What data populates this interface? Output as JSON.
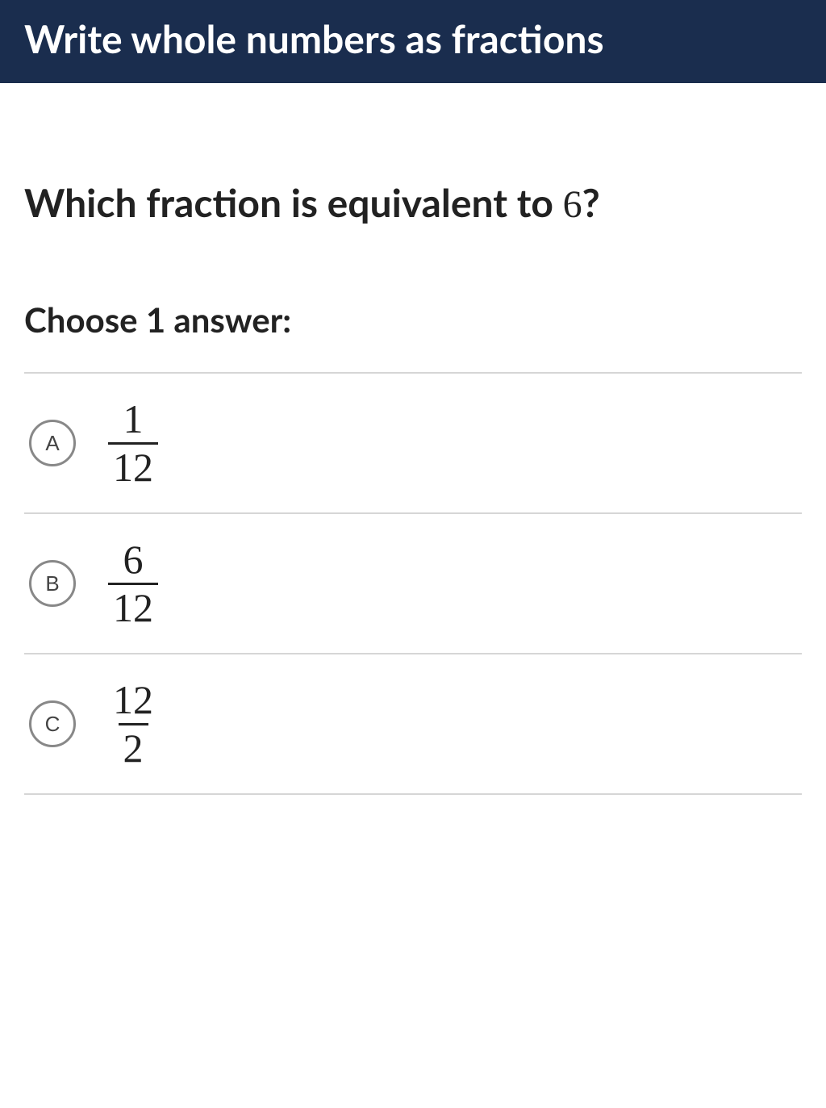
{
  "header": {
    "title": "Write whole numbers as fractions",
    "background_color": "#1a2d4e",
    "text_color": "#ffffff"
  },
  "question": {
    "prefix": "Which fraction is equivalent to ",
    "value": "6",
    "suffix": "?"
  },
  "instruction": "Choose 1 answer:",
  "options": [
    {
      "letter": "A",
      "numerator": "1",
      "denominator": "12"
    },
    {
      "letter": "B",
      "numerator": "6",
      "denominator": "12"
    },
    {
      "letter": "C",
      "numerator": "12",
      "denominator": "2"
    }
  ],
  "styling": {
    "body_text_color": "#222222",
    "divider_color": "#d6d6d6",
    "radio_border_color": "#888888",
    "fraction_font": "Times New Roman",
    "header_fontsize": 48,
    "question_fontsize": 48,
    "instruction_fontsize": 42,
    "fraction_fontsize": 50,
    "radio_letter_fontsize": 26
  }
}
